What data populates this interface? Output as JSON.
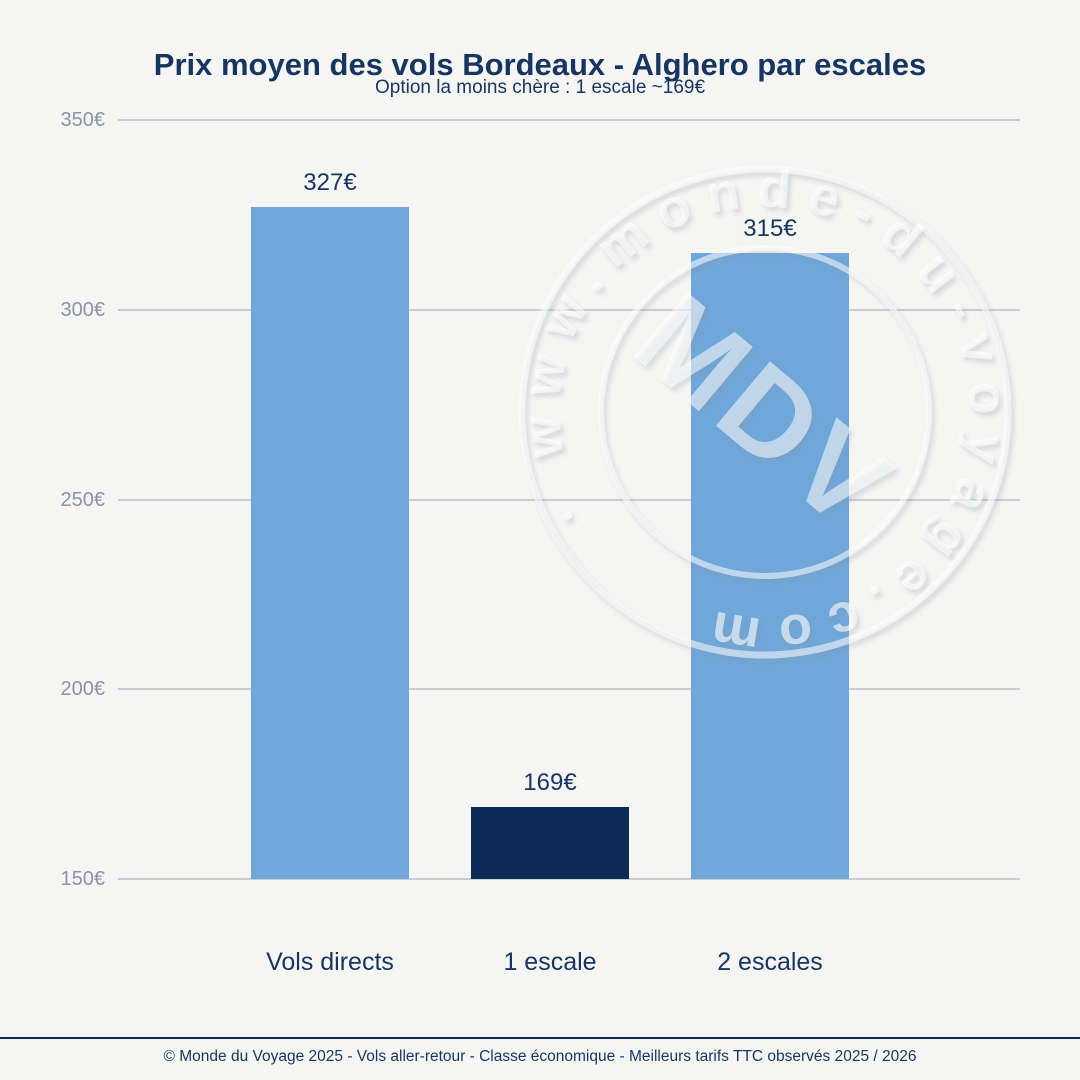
{
  "header": {
    "title": "Prix moyen des vols Bordeaux - Alghero par escales",
    "subtitle": "Option la moins chère : 1 escale ~169€"
  },
  "chart_data": {
    "type": "bar",
    "title": "Prix moyen des vols Bordeaux - Alghero par escales",
    "subtitle": "Option la moins chère : 1 escale ~169€",
    "categories": [
      "Vols directs",
      "1 escale",
      "2 escales"
    ],
    "values": [
      327,
      169,
      315
    ],
    "value_labels": [
      "327€",
      "169€",
      "315€"
    ],
    "bar_colors": [
      "#6FA7DA",
      "#0D2A57",
      "#6FA7DA"
    ],
    "xlabel": "",
    "ylabel": "",
    "ylim": [
      150,
      350
    ],
    "yticks": [
      {
        "value": 350,
        "label": "350€"
      },
      {
        "value": 300,
        "label": "300€"
      },
      {
        "value": 250,
        "label": "250€"
      },
      {
        "value": 200,
        "label": "200€"
      },
      {
        "value": 150,
        "label": "150€"
      }
    ],
    "grid": true,
    "legend": false
  },
  "watermark": {
    "ring_text": "· www.monde-du-voyage.com",
    "center_text": "MDV"
  },
  "footer": {
    "text": "© Monde du Voyage 2025 - Vols aller-retour - Classe économique - Meilleurs tarifs TTC observés 2025 / 2026"
  },
  "colors": {
    "background": "#F5F5F3",
    "text_navy": "#17355F",
    "tick_gray": "#8D93A5",
    "gridline": "#C8CCD4",
    "bar_light": "#6FA7DA",
    "bar_dark": "#0D2A57",
    "footer_line": "#0D2A57"
  }
}
